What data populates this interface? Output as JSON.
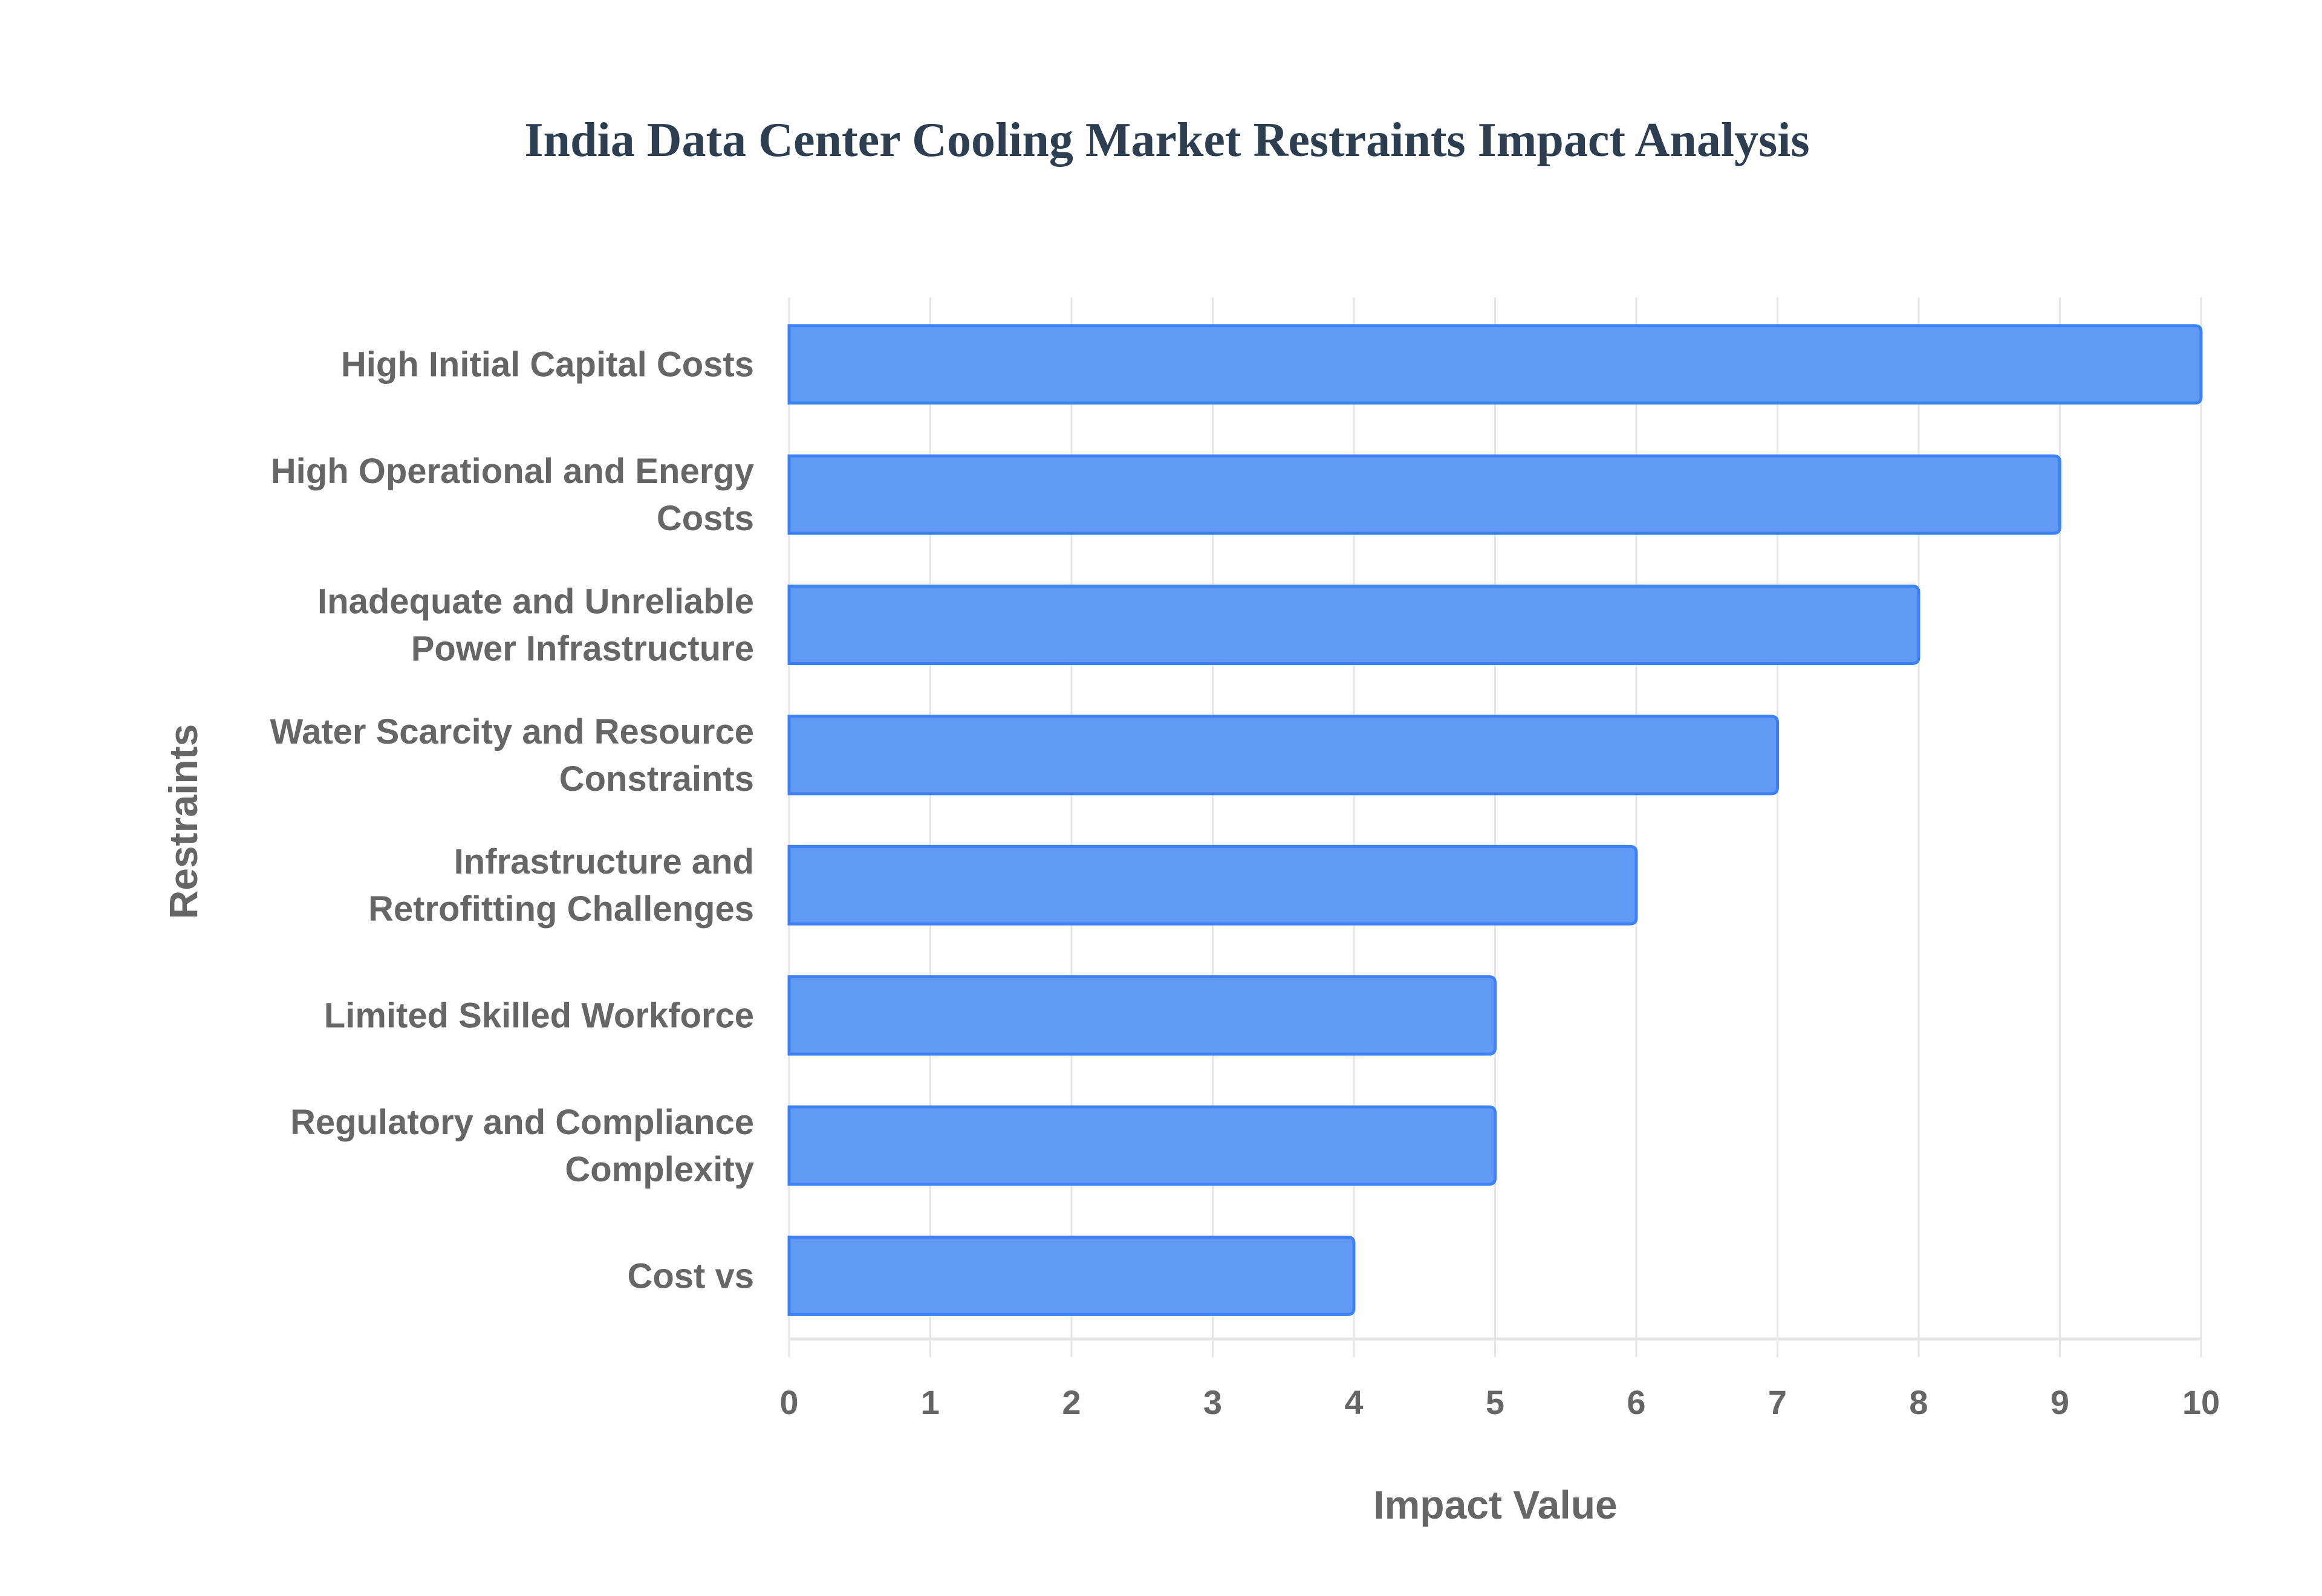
{
  "chart_data": {
    "type": "bar",
    "orientation": "horizontal",
    "title": "India Data Center Cooling Market Restraints Impact Analysis",
    "xlabel": "Impact Value",
    "ylabel": "Restraints",
    "xlim": [
      0,
      10
    ],
    "xticks": [
      "0",
      "1",
      "2",
      "3",
      "4",
      "5",
      "6",
      "7",
      "8",
      "9",
      "10"
    ],
    "grid": true,
    "categories": [
      [
        "High Initial Capital Costs"
      ],
      [
        "High Operational and Energy",
        "Costs"
      ],
      [
        "Inadequate and Unreliable",
        "Power Infrastructure"
      ],
      [
        "Water Scarcity and Resource",
        "Constraints"
      ],
      [
        "Infrastructure and",
        "Retrofitting Challenges"
      ],
      [
        "Limited Skilled Workforce"
      ],
      [
        "Regulatory and Compliance",
        "Complexity"
      ],
      [
        "Cost vs"
      ]
    ],
    "values": [
      10,
      9,
      8,
      7,
      6,
      5,
      5,
      4
    ],
    "bar_color": "#6199f5",
    "bar_border_color": "#3b82f6"
  }
}
